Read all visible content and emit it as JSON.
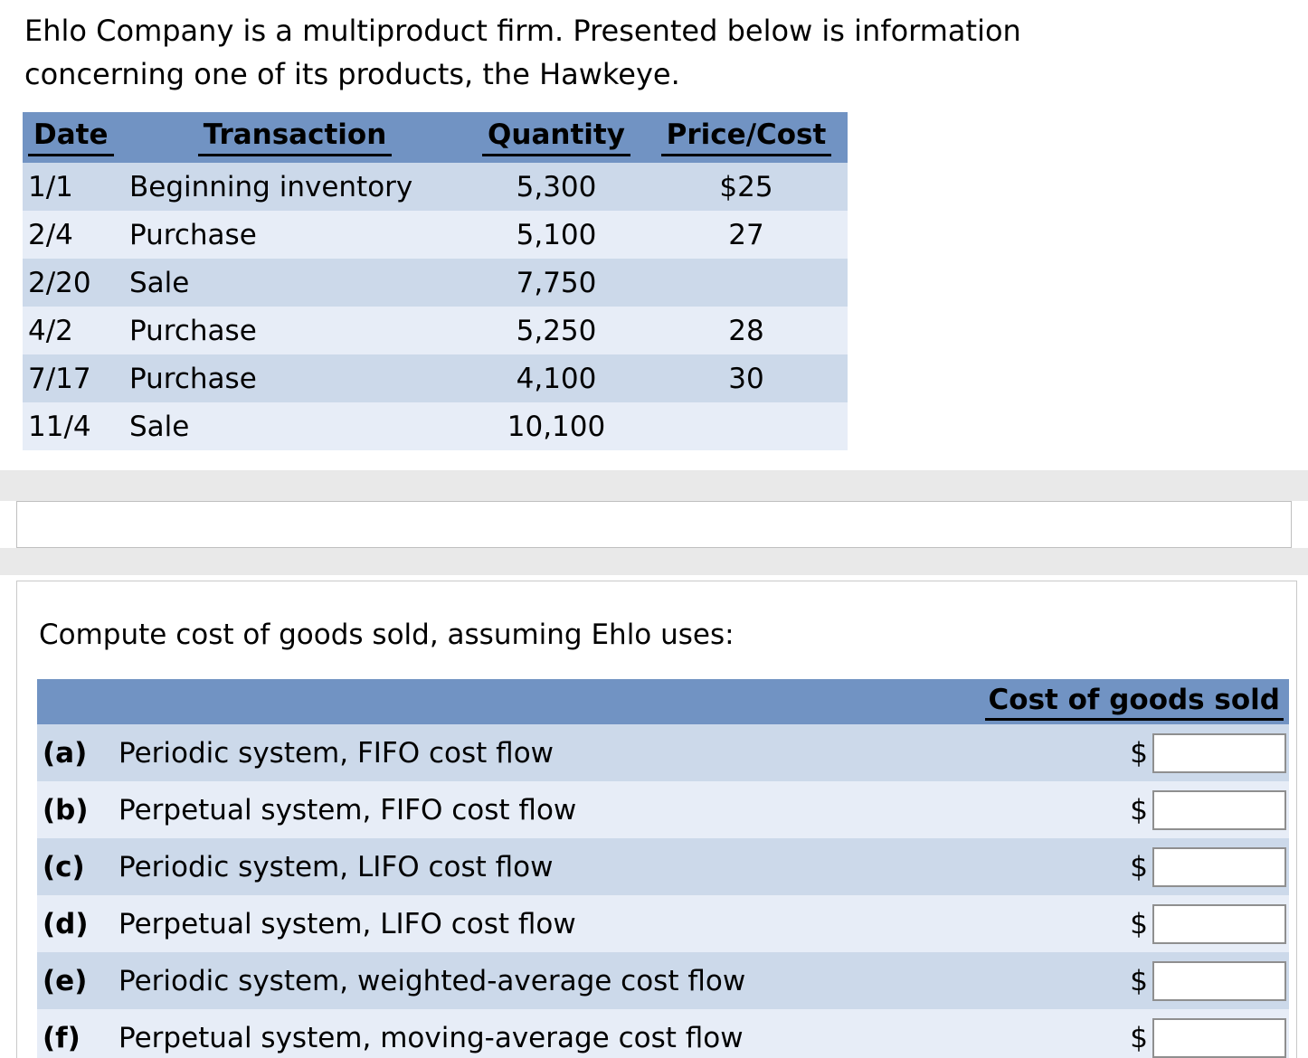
{
  "intro": "Ehlo Company is a multiproduct firm. Presented below is information concerning one of its products, the Hawkeye.",
  "inventory_table": {
    "headers": [
      "Date",
      "Transaction",
      "Quantity",
      "Price/Cost"
    ],
    "rows": [
      {
        "date": "1/1",
        "transaction": "Beginning inventory",
        "quantity": "5,300",
        "price": "$25"
      },
      {
        "date": "2/4",
        "transaction": "Purchase",
        "quantity": "5,100",
        "price": "27"
      },
      {
        "date": "2/20",
        "transaction": "Sale",
        "quantity": "7,750",
        "price": ""
      },
      {
        "date": "4/2",
        "transaction": "Purchase",
        "quantity": "5,250",
        "price": "28"
      },
      {
        "date": "7/17",
        "transaction": "Purchase",
        "quantity": "4,100",
        "price": "30"
      },
      {
        "date": "11/4",
        "transaction": "Sale",
        "quantity": "10,100",
        "price": ""
      }
    ]
  },
  "answer_box": {
    "value": ""
  },
  "compute_section": {
    "prompt": "Compute cost of goods sold, assuming Ehlo uses:",
    "column_header": "Cost of goods sold",
    "currency_symbol": "$",
    "rows": [
      {
        "label": "(a)",
        "description": "Periodic system, FIFO cost flow",
        "value": ""
      },
      {
        "label": "(b)",
        "description": "Perpetual system, FIFO cost flow",
        "value": ""
      },
      {
        "label": "(c)",
        "description": "Periodic system, LIFO cost flow",
        "value": ""
      },
      {
        "label": "(d)",
        "description": "Perpetual system, LIFO cost flow",
        "value": ""
      },
      {
        "label": "(e)",
        "description": "Periodic system, weighted-average cost flow",
        "value": ""
      },
      {
        "label": "(f)",
        "description": "Perpetual system, moving-average cost flow",
        "value": ""
      }
    ]
  },
  "colors": {
    "header_blue": "#7193c3",
    "row_alt_dark": "#ccd9ea",
    "row_alt_light": "#e7edf7",
    "separator_gray": "#e9e9e9"
  }
}
